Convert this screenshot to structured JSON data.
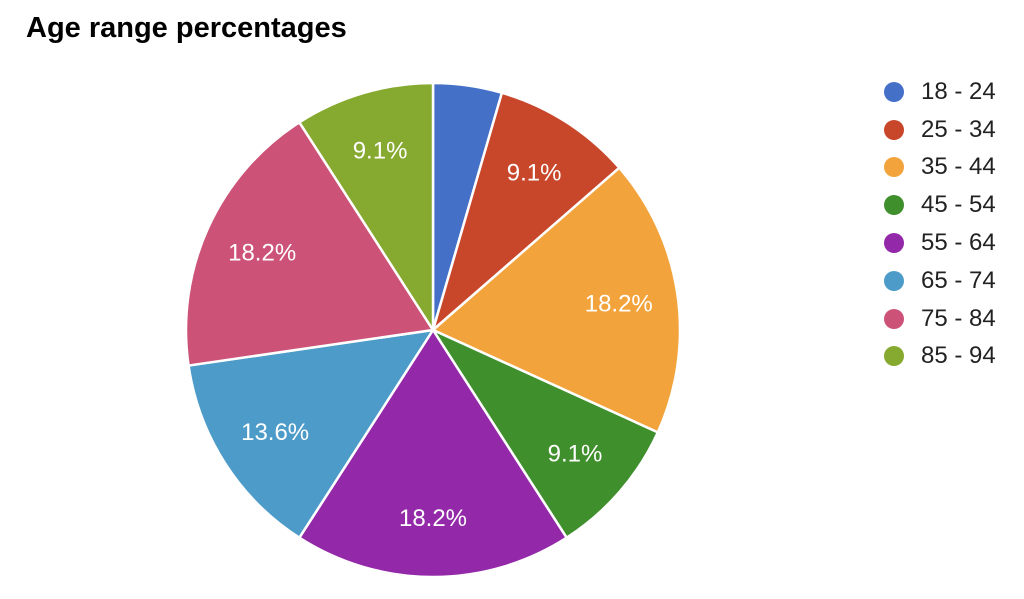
{
  "chart_data": {
    "type": "pie",
    "title": "Age range percentages",
    "categories": [
      "18 - 24",
      "25 - 34",
      "35 - 44",
      "45 - 54",
      "55 - 64",
      "65 - 74",
      "75 - 84",
      "85 - 94"
    ],
    "values": [
      4.5,
      9.1,
      18.2,
      9.1,
      18.2,
      13.6,
      18.2,
      9.1
    ],
    "slice_labels": [
      "",
      "9.1%",
      "18.2%",
      "9.1%",
      "18.2%",
      "13.6%",
      "18.2%",
      "9.1%"
    ],
    "colors": [
      "#4470C8",
      "#C8472B",
      "#F2A33C",
      "#3F8F2D",
      "#9328A8",
      "#4D9BC9",
      "#CC5377",
      "#86A92F"
    ],
    "start_angle_deg": 0,
    "direction": "clockwise",
    "legend_position": "right",
    "slice_label_color": "#ffffff",
    "slice_border_color": "#ffffff",
    "title_color": "#000000",
    "legend_text_color": "#222222",
    "background_color": "#ffffff"
  }
}
